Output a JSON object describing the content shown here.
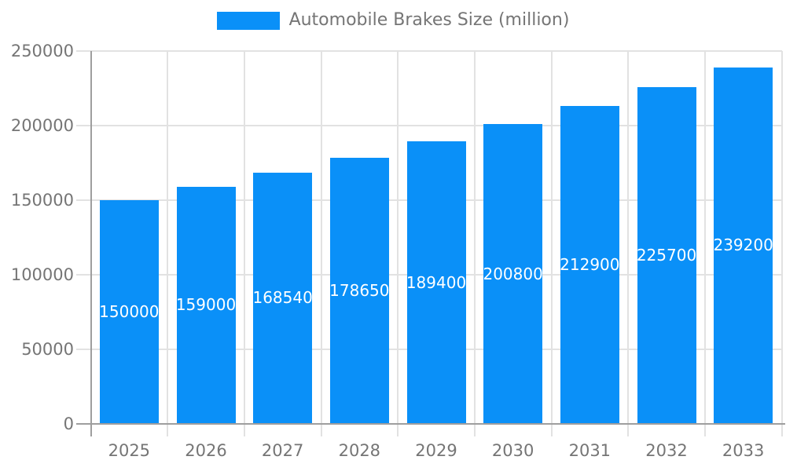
{
  "legend": {
    "label": "Automobile Brakes Size (million)"
  },
  "chart_data": {
    "type": "bar",
    "title": "",
    "legend": "Automobile Brakes Size (million)",
    "legend_position": "top-center",
    "categories": [
      "2025",
      "2026",
      "2027",
      "2028",
      "2029",
      "2030",
      "2031",
      "2032",
      "2033"
    ],
    "values": [
      150000,
      159000,
      168540,
      178650,
      189400,
      200800,
      212900,
      225700,
      239200
    ],
    "xlabel": "",
    "ylabel": "",
    "ylim": [
      0,
      250000
    ],
    "ytick_step": 50000,
    "ytick_labels": [
      "0",
      "50000",
      "100000",
      "150000",
      "200000",
      "250000"
    ],
    "grid": true,
    "value_labels_inside_bars": true,
    "colors": {
      "bar": "#0a90f8",
      "bar_value_text": "#ffffff",
      "axis_text": "#757575",
      "gridline": "#e2e2e2",
      "axis_line": "#9e9e9e",
      "background": "#ffffff"
    }
  }
}
